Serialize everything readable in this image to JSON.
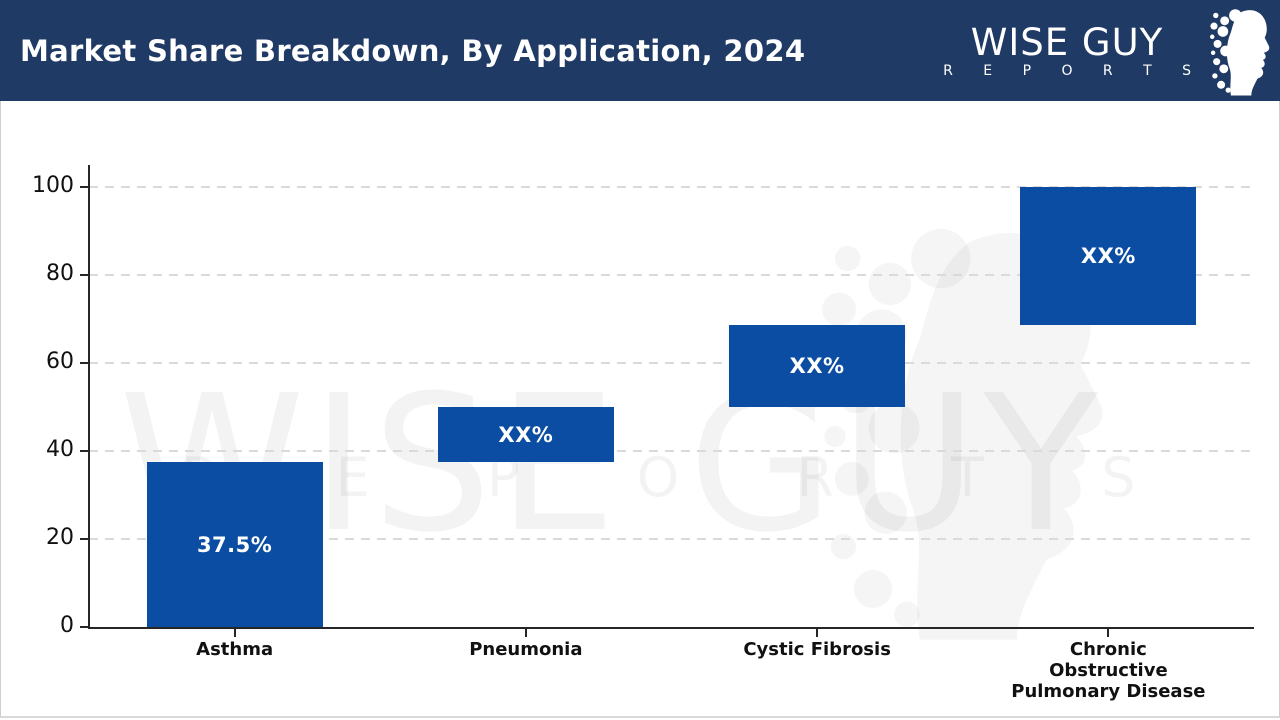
{
  "header": {
    "title": "Market Share Breakdown, By Application, 2024",
    "logo": {
      "brand": "WISE GUY",
      "sub": "R E P O R T S"
    }
  },
  "watermark": {
    "brand": "WISE GUY",
    "sub": "R E P O R T S"
  },
  "colors": {
    "header_bg": "#203A66",
    "bar": "#0C4DA4",
    "axis": "#262626",
    "grid": "#dadada",
    "text": "#111111",
    "bar_label": "#ffffff"
  },
  "chart_data": {
    "type": "bar",
    "subtype": "waterfall",
    "title": "Market Share Breakdown, By Application, 2024",
    "xlabel": "",
    "ylabel": "",
    "ylim": [
      0,
      105
    ],
    "yticks": [
      0,
      20,
      40,
      60,
      80,
      100
    ],
    "grid": "horizontal-dashed",
    "legend": "none",
    "categories": [
      "Asthma",
      "Pneumonia",
      "Cystic Fibrosis",
      "Chronic Obstructive Pulmonary Disease"
    ],
    "category_label_lines": [
      [
        "Asthma"
      ],
      [
        "Pneumonia"
      ],
      [
        "Cystic Fibrosis"
      ],
      [
        "Chronic",
        "Obstructive",
        "Pulmonary Disease"
      ]
    ],
    "series": [
      {
        "name": "Market Share",
        "segments": [
          {
            "category": "Asthma",
            "start": 0,
            "end": 37.5,
            "label": "37.5%"
          },
          {
            "category": "Pneumonia",
            "start": 37.5,
            "end": 50,
            "label": "XX%"
          },
          {
            "category": "Cystic Fibrosis",
            "start": 50,
            "end": 68.75,
            "label": "XX%"
          },
          {
            "category": "Chronic Obstructive Pulmonary Disease",
            "start": 68.75,
            "end": 100,
            "label": "XX%"
          }
        ]
      }
    ]
  }
}
